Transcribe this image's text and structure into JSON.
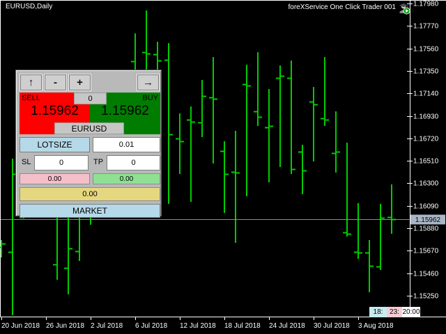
{
  "window": {
    "symbol_period": "EURUSD,Daily",
    "ea_title": "foreXService One Click Trader 001"
  },
  "panel": {
    "nav_up": "↑",
    "nav_minus": "-",
    "nav_plus": "+",
    "nav_arrow": "→",
    "sell_label": "SELL",
    "buy_label": "BUY",
    "spread": "0",
    "sell_price": "1.15962",
    "buy_price": "1.15962",
    "symbol": "EURUSD",
    "lotsize_label": "LOTSIZE",
    "lot_value": "0.01",
    "sl_label": "SL",
    "sl_value": "0",
    "tp_label": "TP",
    "tp_value": "0",
    "sell_profit": "0.00",
    "buy_profit": "0.00",
    "total_profit": "0.00",
    "market_label": "MARKET"
  },
  "clock": {
    "t1": "18:",
    "t2": "23:",
    "t3": "20:00"
  },
  "colors": {
    "bar_green": "#00cc00",
    "frame": "#ffffff",
    "price_line": "#7e90a3",
    "price_tag_bg": "#a9b6c6",
    "sell_red": "#ff0000",
    "buy_green": "#007d00",
    "clock_cyan": "#c6ecf0",
    "clock_pink": "#f6ccd4",
    "clock_white": "#ffffff"
  },
  "y_axis": {
    "labels": [
      "1.17980",
      "1.17770",
      "1.17560",
      "1.17350",
      "1.17140",
      "1.16930",
      "1.16720",
      "1.16510",
      "1.16300",
      "1.16090",
      "1.15880",
      "1.15670",
      "1.15460",
      "1.15250"
    ],
    "current_price_label": "1.15962"
  },
  "x_axis": {
    "labels": [
      "20 Jun 2018",
      "26 Jun 2018",
      "2 Jul 2018",
      "6 Jul 2018",
      "12 Jul 2018",
      "18 Jul 2018",
      "24 Jul 2018",
      "30 Jul 2018",
      "3 Aug 2018"
    ],
    "tick_bar_indices": [
      0,
      4,
      8,
      12,
      16,
      20,
      24,
      28,
      32
    ]
  },
  "chart_data": {
    "type": "ohlc-bar",
    "symbol": "EURUSD",
    "timeframe": "Daily",
    "title": "EURUSD,Daily",
    "grid": false,
    "price_min": 1.1525,
    "price_max": 1.1798,
    "current_price": 1.15962,
    "bars": [
      {
        "date": "20 Jun 2018",
        "o": 1.15705,
        "h": 1.1577,
        "l": 1.15608,
        "c": 1.15738
      },
      {
        "date": "21 Jun 2018",
        "o": 1.1566,
        "h": 1.16531,
        "l": 1.15068,
        "c": 1.16388
      },
      {
        "date": "22 Jun 2018",
        "o": 1.15985,
        "h": 1.16453,
        "l": 1.15972,
        "c": 1.16323
      },
      {
        "date": "25 Jun 2018",
        "o": 1.16355,
        "h": 1.16518,
        "l": 1.16063,
        "c": 1.16128
      },
      {
        "date": "26 Jun 2018",
        "o": 1.16128,
        "h": 1.16388,
        "l": 1.16011,
        "c": 1.16258
      },
      {
        "date": "27 Jun 2018",
        "o": 1.15543,
        "h": 1.16323,
        "l": 1.154,
        "c": 1.16063
      },
      {
        "date": "28 Jun 2018",
        "o": 1.1551,
        "h": 1.16193,
        "l": 1.15263,
        "c": 1.15692
      },
      {
        "date": "29 Jun 2018",
        "o": 1.15666,
        "h": 1.16128,
        "l": 1.15575,
        "c": 1.1603
      },
      {
        "date": "2 Jul 2018",
        "o": 1.16063,
        "h": 1.16258,
        "l": 1.15913,
        "c": 1.15998
      },
      {
        "date": "3 Jul 2018",
        "o": 1.16323,
        "h": 1.16713,
        "l": 1.16128,
        "c": 1.16583
      },
      {
        "date": "4 Jul 2018",
        "o": 1.16583,
        "h": 1.16973,
        "l": 1.16323,
        "c": 1.16843
      },
      {
        "date": "5 Jul 2018",
        "o": 1.16843,
        "h": 1.17233,
        "l": 1.16583,
        "c": 1.16973
      },
      {
        "date": "6 Jul 2018",
        "o": 1.17441,
        "h": 1.177,
        "l": 1.16388,
        "c": 1.16973
      },
      {
        "date": "9 Jul 2018",
        "o": 1.17525,
        "h": 1.17915,
        "l": 1.16518,
        "c": 1.17512
      },
      {
        "date": "10 Jul 2018",
        "o": 1.17506,
        "h": 1.17623,
        "l": 1.16453,
        "c": 1.17447
      },
      {
        "date": "11 Jul 2018",
        "o": 1.17454,
        "h": 1.1761,
        "l": 1.16108,
        "c": 1.16758
      },
      {
        "date": "12 Jul 2018",
        "o": 1.16719,
        "h": 1.16953,
        "l": 1.16388,
        "c": 1.16693
      },
      {
        "date": "13 Jul 2018",
        "o": 1.16895,
        "h": 1.17018,
        "l": 1.16128,
        "c": 1.16875
      },
      {
        "date": "16 Jul 2018",
        "o": 1.16869,
        "h": 1.17265,
        "l": 1.16732,
        "c": 1.17116
      },
      {
        "date": "17 Jul 2018",
        "o": 1.17103,
        "h": 1.1748,
        "l": 1.16485,
        "c": 1.1709
      },
      {
        "date": "18 Jul 2018",
        "o": 1.16602,
        "h": 1.16693,
        "l": 1.16024,
        "c": 1.16388
      },
      {
        "date": "19 Jul 2018",
        "o": 1.16407,
        "h": 1.16791,
        "l": 1.15744,
        "c": 1.16401
      },
      {
        "date": "20 Jul 2018",
        "o": 1.17226,
        "h": 1.17408,
        "l": 1.1618,
        "c": 1.17213
      },
      {
        "date": "23 Jul 2018",
        "o": 1.16973,
        "h": 1.17525,
        "l": 1.16836,
        "c": 1.16921
      },
      {
        "date": "24 Jul 2018",
        "o": 1.16823,
        "h": 1.17181,
        "l": 1.1631,
        "c": 1.16836
      },
      {
        "date": "25 Jul 2018",
        "o": 1.17285,
        "h": 1.17402,
        "l": 1.16453,
        "c": 1.17304
      },
      {
        "date": "26 Jul 2018",
        "o": 1.17285,
        "h": 1.17447,
        "l": 1.16388,
        "c": 1.16433
      },
      {
        "date": "27 Jul 2018",
        "o": 1.16596,
        "h": 1.16661,
        "l": 1.16199,
        "c": 1.1642
      },
      {
        "date": "30 Jul 2018",
        "o": 1.17064,
        "h": 1.172,
        "l": 1.16505,
        "c": 1.17038
      },
      {
        "date": "31 Jul 2018",
        "o": 1.16908,
        "h": 1.1748,
        "l": 1.16836,
        "c": 1.16895
      },
      {
        "date": "1 Aug 2018",
        "o": 1.16583,
        "h": 1.16973,
        "l": 1.16401,
        "c": 1.16596
      },
      {
        "date": "2 Aug 2018",
        "o": 1.15842,
        "h": 1.1668,
        "l": 1.15803,
        "c": 1.15829
      },
      {
        "date": "3 Aug 2018",
        "o": 1.1566,
        "h": 1.16115,
        "l": 1.15595,
        "c": 1.15653
      },
      {
        "date": "6 Aug 2018",
        "o": 1.15653,
        "h": 1.1577,
        "l": 1.15283,
        "c": 1.1553
      },
      {
        "date": "7 Aug 2018",
        "o": 1.15523,
        "h": 1.16108,
        "l": 1.15491,
        "c": 1.15978
      },
      {
        "date": "8 Aug 2018",
        "o": 1.15985,
        "h": 1.1629,
        "l": 1.15829,
        "c": 1.15962
      }
    ]
  }
}
